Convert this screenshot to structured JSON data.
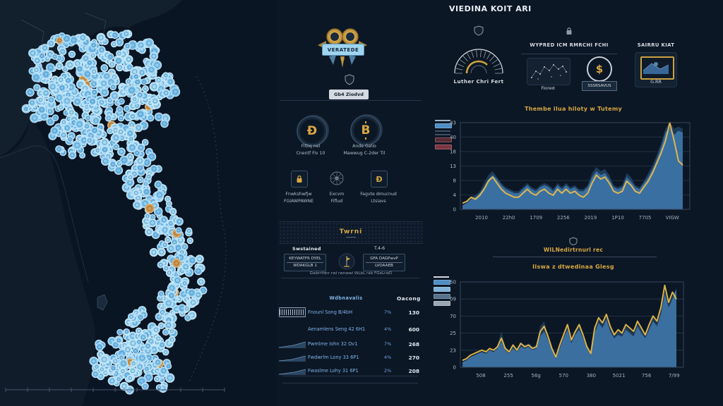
{
  "title": "VIEDINA KOIT ARI",
  "colors": {
    "background": "#0c1725",
    "gold": "#d9a843",
    "coin_blue": "#8ccdf2",
    "coin_orange": "#cf9a55",
    "area_blue": "#3f76ab",
    "line_gold": "#e6ba4c",
    "link_blue": "#7fb3e8",
    "sea": "#0a1523",
    "land": "#121f2d"
  },
  "map": {
    "region": "vietnam-coin-map",
    "icon": "coin-dot",
    "scalebar": true
  },
  "emblem": {
    "icon": "double-gold-coins-crest",
    "banner": "VERATEDE",
    "shield_icon": "small-shield",
    "badge": "Gb4 Ziodvd"
  },
  "features": {
    "large": [
      {
        "icon": "dong-coin",
        "glyph": "Đ",
        "caption1": "Fitbq nel",
        "caption2": "Cnentf Fiv 10"
      },
      {
        "icon": "bitcoin-coin",
        "glyph": "B",
        "caption1": "Ande Galio",
        "caption2": "Mawwug C-2der Til"
      }
    ],
    "small": [
      {
        "icon": "padlock",
        "glyph": "",
        "caption1": "Fnwkshwfjw",
        "caption2": "FGIAWPAWNE"
      },
      {
        "icon": "compass-rose",
        "glyph": "",
        "caption1": "Excvm",
        "caption2": "Fiflud"
      },
      {
        "icon": "dong-square",
        "glyph": "Đ",
        "caption1": "Fagvte dmucnud",
        "caption2": "Ltsiavs"
      }
    ]
  },
  "twin": {
    "title": "Twrni",
    "left_label": "Swstained",
    "right_label": "T.4-6",
    "left_box_line1": "KEYWATFR DYEL",
    "left_box_line2": "WDAKGLB 1",
    "right_box_line1": "GFA DAGPwvP",
    "right_box_line2": "LVOAAEB",
    "center_icon": "statue-emblem",
    "caption": "Gwbrrfdnr rwl rwnwwl WLbL rab FGeLrwD"
  },
  "table": {
    "col1": "Wdbnavalis",
    "col2": "Oacong",
    "rows": [
      {
        "icon": "barcode",
        "label": "Fnounl Song B/4bH",
        "pct": "7%",
        "value": "130"
      },
      {
        "icon": "none",
        "label": "Aenamlens Seng 42 6H1",
        "pct": "4%",
        "value": "600"
      },
      {
        "icon": "sparkline",
        "label": "Pwmlme Iohn 32 Ov1",
        "pct": "7%",
        "value": "268"
      },
      {
        "icon": "sparkline",
        "label": "Fwdwrlm Lony 33 6P1",
        "pct": "4%",
        "value": "270"
      },
      {
        "icon": "sparkline",
        "label": "Fwaslme Lohy 31 6P1",
        "pct": "2%",
        "value": "208"
      }
    ]
  },
  "stats": {
    "gauge": {
      "icon": "gauge-meter",
      "top_icon": "shield",
      "label": "Luther Chri Fert"
    },
    "middle": {
      "top_icon": "padlock",
      "header": "WYPRED ICM RMRCHI FCHI",
      "items": [
        {
          "icon": "constellation-sketch",
          "label": "Fiored"
        },
        {
          "icon": "dollar-sign",
          "label": "SSSRSAVUS"
        }
      ]
    },
    "right": {
      "header": "SAIRRU KIAT",
      "icon": "framed-chart",
      "label": "G.RR"
    }
  },
  "chart_data": [
    {
      "type": "area",
      "title": "Thembe ilua hiloty w Tutemy",
      "xlabel": "",
      "ylabel": "",
      "ylim": [
        0,
        43
      ],
      "grid": true,
      "legend_position": "left",
      "x_ticks": [
        "2010",
        "22h0",
        "1709",
        "2256",
        "2019",
        "1P10",
        "7705",
        "VIGW"
      ],
      "y_ticks_bottom_to_top": [
        "0",
        "4",
        "8",
        "13",
        "18",
        "40",
        "43"
      ],
      "legend_swatches": [
        "line:#9fb4c6",
        "bar:#4d8ec4",
        "line:#3d5166",
        "line:#3d5166",
        "bar:#5a2a33",
        "bar:#7e3440"
      ],
      "series": [
        {
          "name": "backing-area",
          "kind": "area",
          "color": "#1f3f61",
          "opacity": 0.9,
          "values": [
            2,
            4,
            6,
            7,
            9,
            13,
            17,
            19,
            16,
            13,
            11,
            10,
            9,
            9,
            11,
            13,
            11,
            10,
            12,
            13,
            12,
            10,
            13,
            11,
            13,
            11,
            12,
            10,
            10,
            12,
            18,
            21,
            19,
            20,
            17,
            12,
            11,
            12,
            18,
            16,
            12,
            11,
            14,
            18,
            22,
            27,
            33,
            40,
            43,
            40,
            41,
            40
          ]
        },
        {
          "name": "main-area",
          "kind": "area",
          "color": "#3f76ab",
          "opacity": 0.88,
          "values": [
            2,
            3,
            5,
            6,
            8,
            11,
            15,
            17,
            15,
            12,
            10,
            9,
            8,
            8,
            10,
            12,
            10,
            9,
            11,
            12,
            11,
            9,
            12,
            10,
            12,
            10,
            11,
            9,
            9,
            11,
            16,
            19,
            17,
            18,
            15,
            11,
            10,
            11,
            16,
            14,
            11,
            10,
            13,
            16,
            20,
            25,
            31,
            38,
            41,
            37,
            39,
            38
          ]
        },
        {
          "name": "gold-line",
          "kind": "line",
          "color": "#e6ba4c",
          "opacity": 0.95,
          "values": [
            3,
            4,
            6,
            5,
            7,
            10,
            14,
            16,
            13,
            10,
            8,
            7,
            6,
            6,
            8,
            10,
            8,
            7,
            9,
            10,
            8,
            7,
            10,
            8,
            10,
            8,
            9,
            7,
            6,
            8,
            13,
            17,
            15,
            16,
            13,
            9,
            8,
            9,
            14,
            12,
            9,
            8,
            11,
            14,
            18,
            23,
            28,
            34,
            43,
            34,
            24,
            22
          ]
        }
      ]
    },
    {
      "type": "area",
      "section_icon": "small-crest",
      "section_header": "WILNedirtrnurl rec",
      "title": "Iiswa z dtwedinaa Glesg",
      "xlabel": "",
      "ylabel": "",
      "ylim": [
        0,
        50
      ],
      "grid": true,
      "legend_position": "left",
      "x_ticks": [
        "508",
        "255",
        "56g",
        "570",
        "380",
        "5021",
        "756",
        "7/99"
      ],
      "y_ticks_bottom_to_top": [
        "0",
        "23",
        "25",
        "70",
        "09",
        "50"
      ],
      "legend_swatches": [
        "line:#cfd8e2",
        "bar:#4d8ec4",
        "bar:#7fb3d8",
        "bar:#57718c",
        "bar:#9aa8b6"
      ],
      "series": [
        {
          "name": "backing-area",
          "kind": "area",
          "color": "#22415f",
          "opacity": 0.85,
          "values": [
            3,
            4,
            6,
            7,
            8,
            9,
            8,
            10,
            9,
            13,
            21,
            12,
            10,
            13,
            11,
            14,
            13,
            14,
            12,
            13,
            24,
            27,
            18,
            12,
            7,
            13,
            19,
            24,
            16,
            21,
            24,
            19,
            13,
            9,
            22,
            28,
            25,
            30,
            23,
            19,
            21,
            20,
            24,
            22,
            20,
            26,
            22,
            19,
            24,
            29,
            26,
            33,
            45,
            37,
            42,
            46
          ]
        },
        {
          "name": "main-area",
          "kind": "area",
          "color": "#3f76ab",
          "opacity": 0.88,
          "values": [
            3,
            4,
            6,
            7,
            8,
            9,
            8,
            10,
            9,
            11,
            15,
            10,
            8,
            11,
            9,
            12,
            11,
            12,
            10,
            11,
            18,
            21,
            16,
            10,
            5,
            11,
            17,
            22,
            14,
            19,
            22,
            17,
            11,
            7,
            20,
            26,
            23,
            28,
            21,
            17,
            19,
            18,
            22,
            20,
            18,
            24,
            20,
            17,
            22,
            27,
            24,
            31,
            43,
            35,
            40,
            46
          ]
        },
        {
          "name": "gold-line",
          "kind": "line",
          "color": "#e6ba4c",
          "opacity": 0.95,
          "values": [
            4,
            5,
            7,
            8,
            9,
            10,
            9,
            11,
            10,
            12,
            17,
            11,
            9,
            13,
            10,
            14,
            12,
            13,
            11,
            12,
            21,
            24,
            18,
            11,
            6,
            13,
            19,
            25,
            16,
            21,
            25,
            19,
            12,
            8,
            23,
            29,
            26,
            31,
            24,
            19,
            22,
            20,
            25,
            23,
            21,
            27,
            23,
            19,
            25,
            30,
            27,
            35,
            48,
            38,
            44,
            40
          ]
        }
      ]
    }
  ]
}
